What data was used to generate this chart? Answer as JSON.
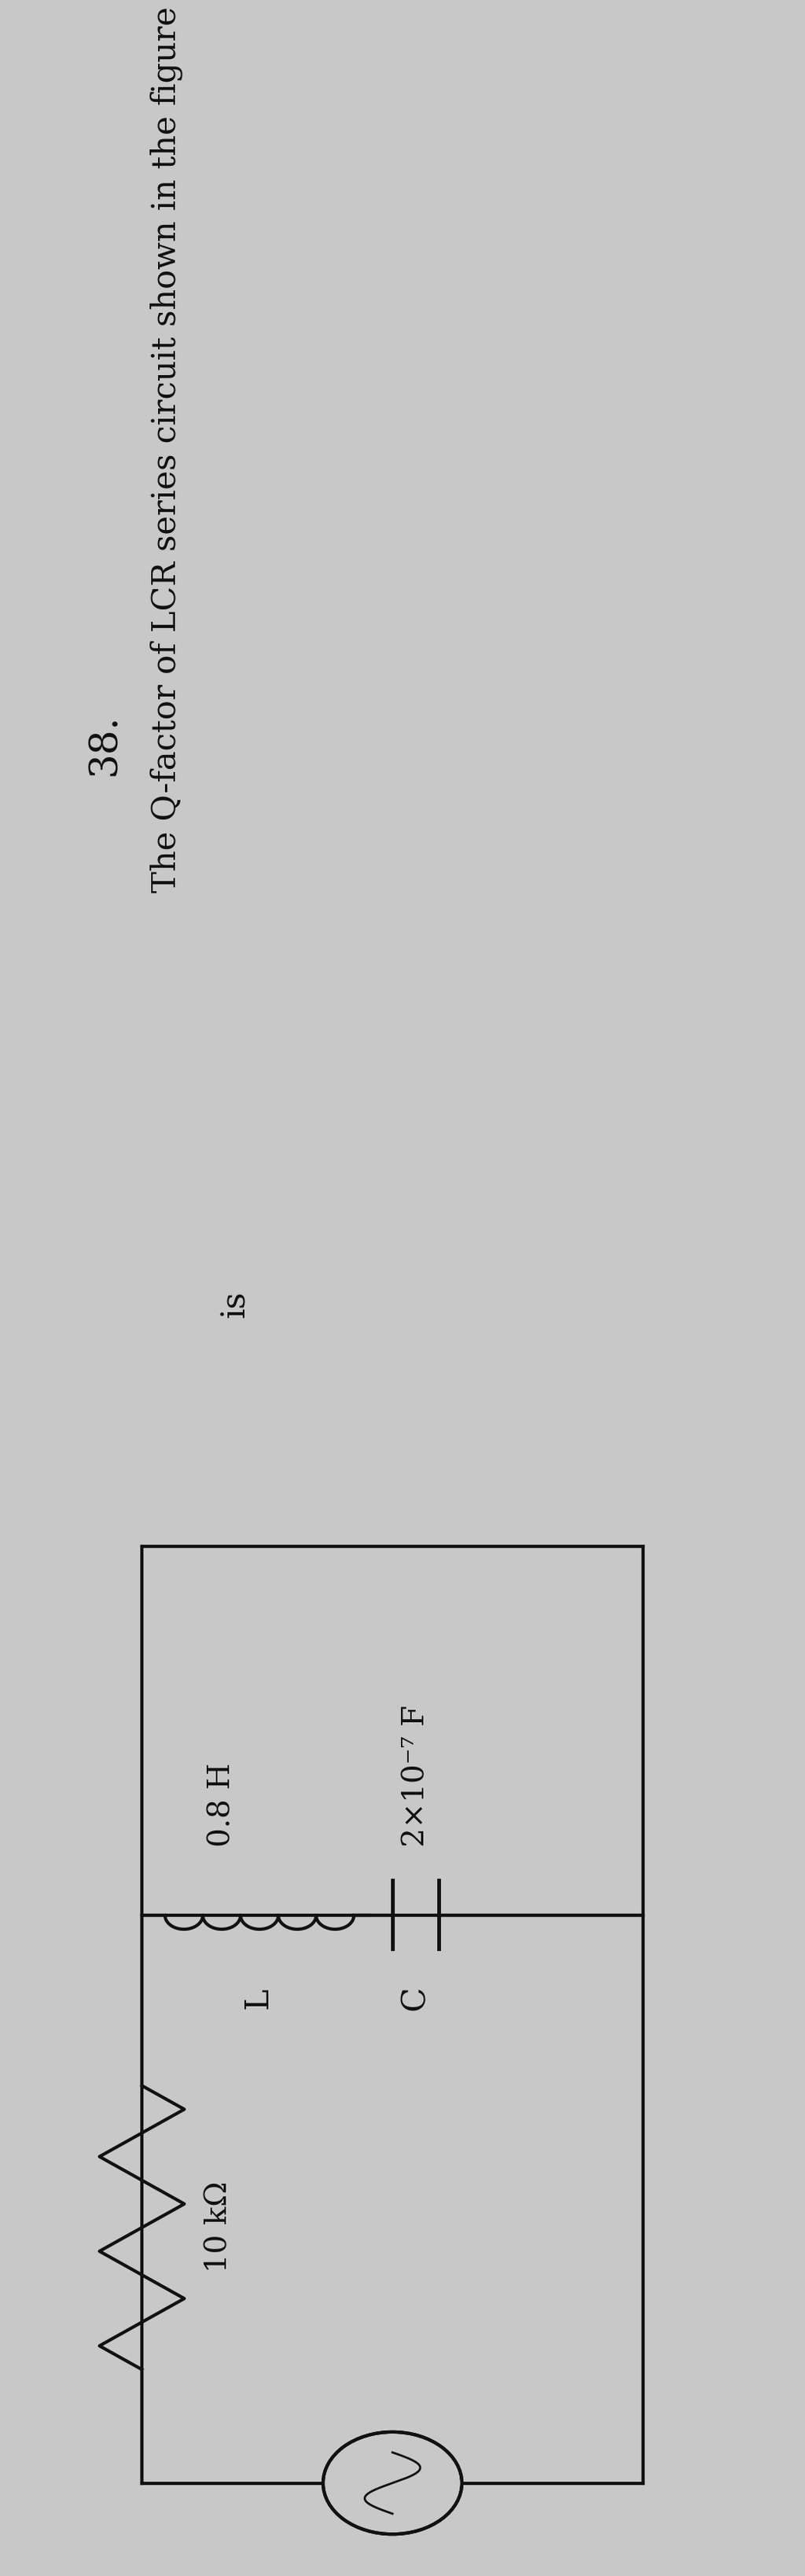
{
  "question_number": "38.",
  "question_text": "The Q-factor of LCR series circuit shown in the figure",
  "question_text2": "is",
  "bg_color": "#c8c8c8",
  "text_color": "#111111",
  "circuit": {
    "resistor_label": "10 kΩ",
    "inductor_label": "L",
    "capacitor_label": "C",
    "L_value": "0.8 H",
    "C_value": "2×10⁻⁷ F"
  }
}
